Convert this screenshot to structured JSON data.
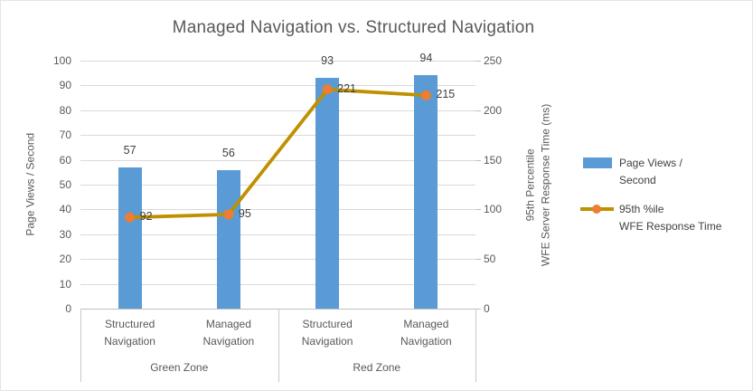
{
  "chart_data": {
    "type": "combo-bar-line",
    "title": "Managed Navigation vs. Structured Navigation",
    "categories": [
      "Structured Navigation",
      "Managed Navigation",
      "Structured Navigation",
      "Managed Navigation"
    ],
    "category_groups": [
      {
        "label": "Green Zone",
        "span": 2
      },
      {
        "label": "Red Zone",
        "span": 2
      }
    ],
    "series": [
      {
        "name": "Page Views / Second",
        "type": "bar",
        "axis": "left",
        "color": "#5B9BD5",
        "values": [
          57,
          56,
          93,
          94
        ]
      },
      {
        "name": "95th %ile WFE Response Time",
        "type": "line",
        "axis": "right",
        "color": "#BF9000",
        "marker_color": "#ED7D31",
        "values": [
          92,
          95,
          221,
          215
        ]
      }
    ],
    "left_axis": {
      "title": "Page Views / Second",
      "min": 0,
      "max": 100,
      "step": 10
    },
    "right_axis": {
      "title": "95th Percentile WFE Server Response Time (ms)",
      "title_lines": [
        "95th Percentile",
        "WFE Server Response Time (ms)"
      ],
      "min": 0,
      "max": 250,
      "step": 50
    },
    "legend": {
      "position": "right",
      "entries": [
        {
          "label": "Page Views /\nSecond",
          "swatch": "bar"
        },
        {
          "label": "95th %ile\nWFE Response Time",
          "swatch": "line-marker"
        }
      ]
    },
    "grid": true,
    "colors": {
      "text": "#595959",
      "data_label": "#404040",
      "gridline": "#D9D9D9",
      "axis_line": "#BFBFBF"
    }
  }
}
